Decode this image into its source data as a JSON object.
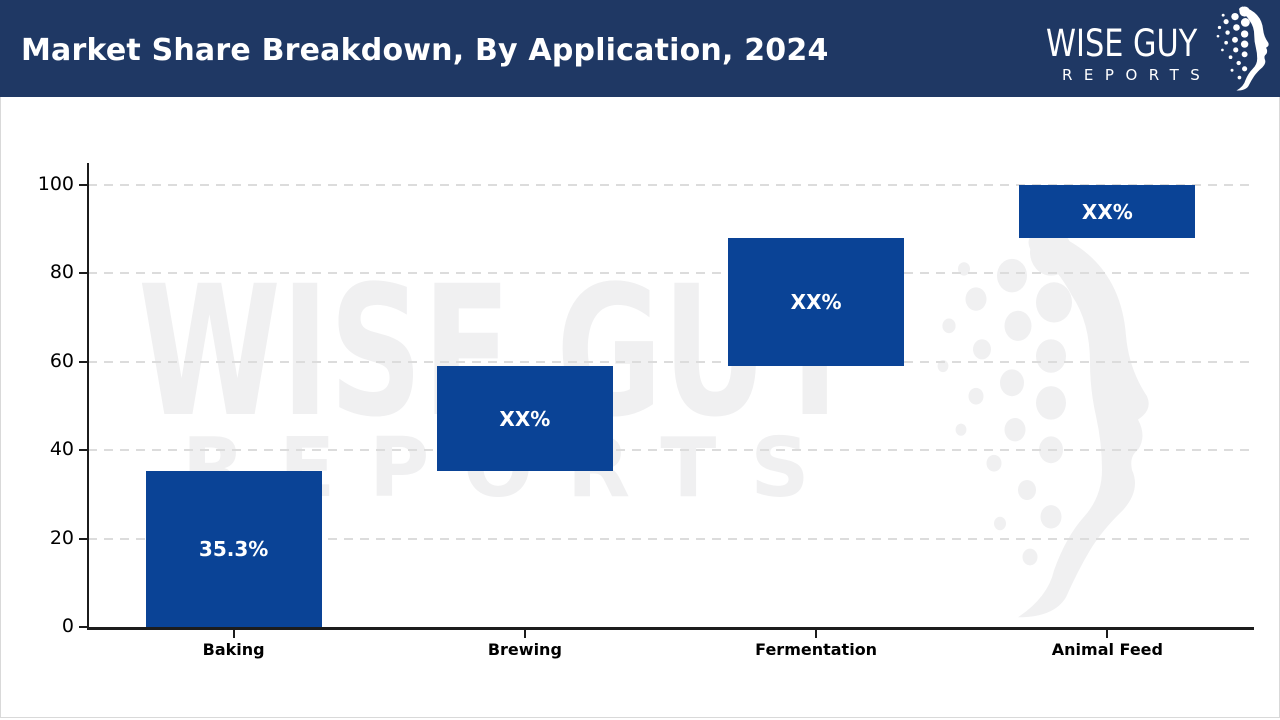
{
  "header": {
    "title": "Market Share Breakdown, By Application, 2024",
    "bg_color": "#1f3864",
    "logo": {
      "line1": "WISE GUY",
      "line2": "REPORTS"
    }
  },
  "watermark": {
    "line1": "WISE GUY",
    "line2": "REPORTS"
  },
  "chart_data": {
    "type": "bar",
    "subtype": "waterfall",
    "title": "Market Share Breakdown, By Application, 2024",
    "categories": [
      "Baking",
      "Brewing",
      "Fermentation",
      "Animal Feed"
    ],
    "segments": [
      {
        "category": "Baking",
        "start": 0,
        "end": 35.3,
        "label": "35.3%"
      },
      {
        "category": "Brewing",
        "start": 35.3,
        "end": 59,
        "label": "XX%"
      },
      {
        "category": "Fermentation",
        "start": 59,
        "end": 88,
        "label": "XX%"
      },
      {
        "category": "Animal Feed",
        "start": 88,
        "end": 100,
        "label": "XX%"
      }
    ],
    "yticks": [
      0,
      20,
      40,
      60,
      80,
      100
    ],
    "ylim": [
      0,
      105
    ],
    "xlabel": "",
    "ylabel": "",
    "legend": "none",
    "grid": "dashed-horizontal",
    "bar_color": "#0a4396",
    "bar_label_color": "#ffffff",
    "axis_color": "#1c1c1c",
    "grid_color": "#dcdcdc"
  }
}
